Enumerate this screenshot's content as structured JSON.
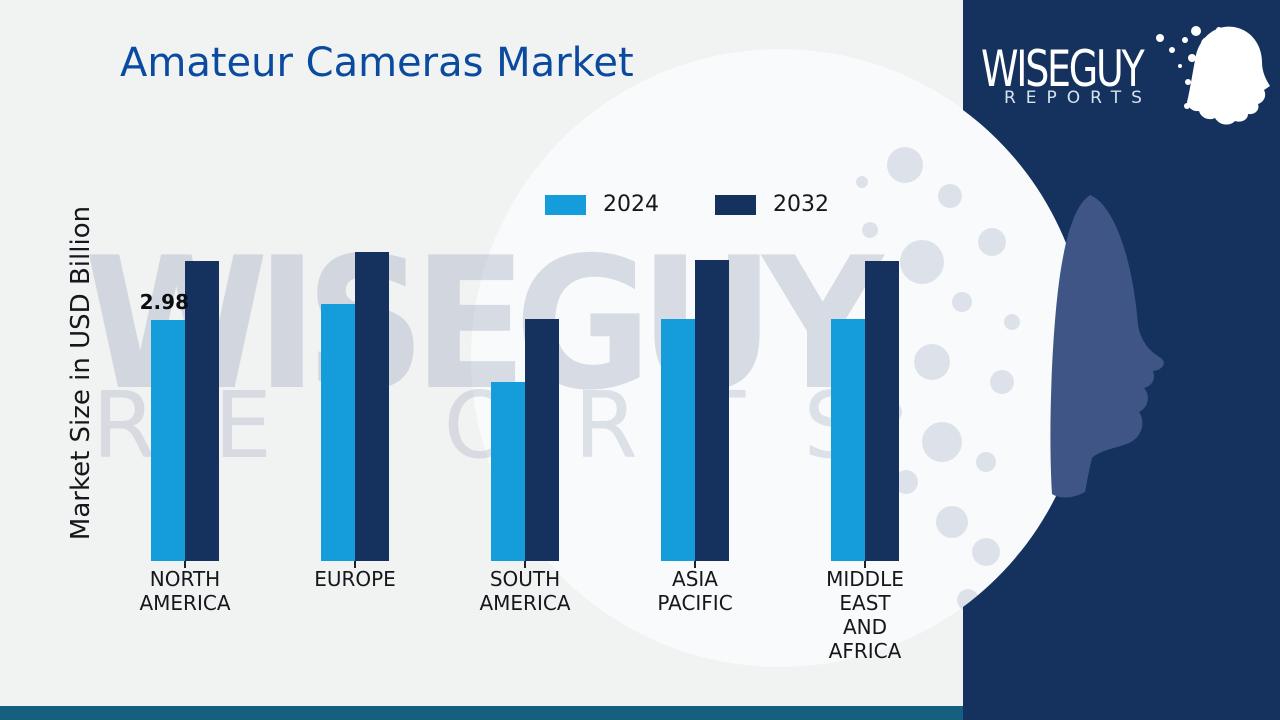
{
  "title": "Amateur Cameras Market",
  "y_axis_label": "Market Size in USD Billion",
  "watermark": {
    "line1": "WISEGUY",
    "line2": "REPORTS"
  },
  "logo": {
    "brand": "WISEGUY",
    "subtext": "REPORTS"
  },
  "colors": {
    "background": "#f1f2f2",
    "title_blue": "#0a4a9f",
    "bar_2024": "#149cdb",
    "bar_2032": "#15325f",
    "navy_panel": "#15325f",
    "face_silhouette": "#3e5585",
    "bottom_strip_teal": "#16607f",
    "watermark_gray": "#ccd3e0"
  },
  "chart_data": {
    "type": "bar",
    "title": "Amateur Cameras Market",
    "xlabel": "",
    "ylabel": "Market Size in USD Billion",
    "categories": [
      "NORTH AMERICA",
      "EUROPE",
      "SOUTH AMERICA",
      "ASIA PACIFIC",
      "MIDDLE EAST AND AFRICA"
    ],
    "series": [
      {
        "name": "2024",
        "color": "#149cdb",
        "values": [
          2.98,
          3.18,
          2.21,
          2.99,
          2.99
        ]
      },
      {
        "name": "2032",
        "color": "#15325f",
        "values": [
          3.71,
          3.82,
          2.99,
          3.72,
          3.71
        ]
      }
    ],
    "data_labels": [
      {
        "series": "2024",
        "category": "NORTH AMERICA",
        "text": "2.98"
      }
    ],
    "ylim": [
      0,
      4.3
    ],
    "grid": false,
    "legend_position": "top-center",
    "note_only_labeled_value": "2.98"
  }
}
